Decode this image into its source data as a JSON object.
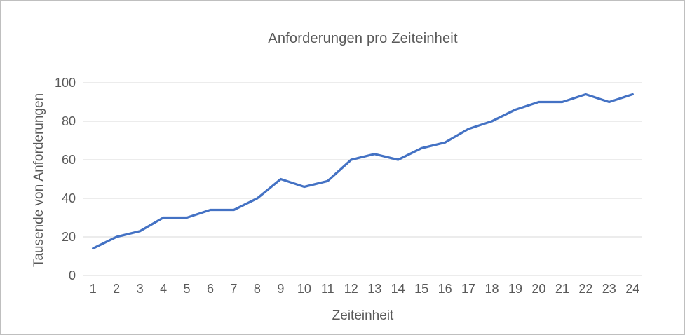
{
  "chart": {
    "title": "Anforderungen pro Zeiteinheit",
    "x_axis_label": "Zeiteinheit",
    "y_axis_label": "Tausende von Anforderungen"
  },
  "colors": {
    "line": "#4472C4",
    "gridline": "#D9D9D9",
    "text": "#595959",
    "border": "#BFBFBF",
    "background": "#FFFFFF"
  },
  "chart_data": {
    "type": "line",
    "title": "Anforderungen pro Zeiteinheit",
    "xlabel": "Zeiteinheit",
    "ylabel": "Tausende von Anforderungen",
    "x": [
      1,
      2,
      3,
      4,
      5,
      6,
      7,
      8,
      9,
      10,
      11,
      12,
      13,
      14,
      15,
      16,
      17,
      18,
      19,
      20,
      21,
      22,
      23,
      24
    ],
    "values": [
      14,
      20,
      23,
      30,
      30,
      34,
      34,
      40,
      50,
      46,
      49,
      60,
      63,
      60,
      66,
      69,
      76,
      80,
      86,
      90,
      90,
      94,
      90,
      94
    ],
    "ylim": [
      0,
      100
    ],
    "y_ticks": [
      0,
      20,
      40,
      60,
      80,
      100
    ],
    "grid": "horizontal",
    "legend": "none",
    "line_color": "#4472C4"
  }
}
